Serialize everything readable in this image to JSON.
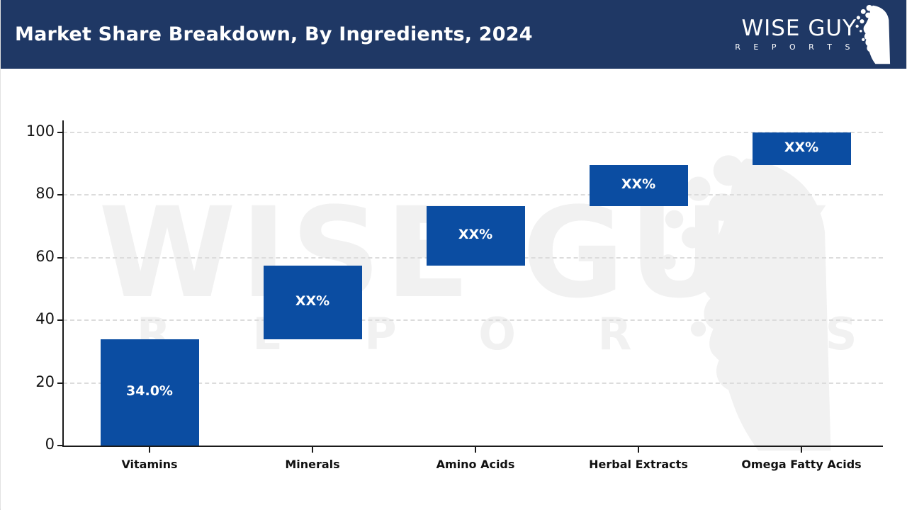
{
  "header": {
    "title": "Market Share Breakdown, By Ingredients, 2024",
    "background_color": "#1f3865",
    "logo": {
      "line1": "WISE GUY",
      "line2": "R E P O R T S"
    }
  },
  "watermark": {
    "line1": "WISE GUY",
    "line2": "R E P O R T S"
  },
  "chart_data": {
    "type": "bar",
    "subtype": "waterfall",
    "title": "Market Share Breakdown, By Ingredients, 2024",
    "xlabel": "",
    "ylabel": "",
    "ylim": [
      0,
      105
    ],
    "y_ticks": [
      0,
      20,
      40,
      60,
      80,
      100
    ],
    "grid": "horizontal-dashed",
    "legend": "none",
    "bar_color": "#0b4da2",
    "bar_label_color": "#ffffff",
    "categories": [
      "Vitamins",
      "Minerals",
      "Amino Acids",
      "Herbal Extracts",
      "Omega Fatty Acids"
    ],
    "segments": [
      {
        "category": "Vitamins",
        "start": 0,
        "end": 34,
        "label": "34.0%"
      },
      {
        "category": "Minerals",
        "start": 34,
        "end": 57.5,
        "label": "XX%"
      },
      {
        "category": "Amino Acids",
        "start": 57.5,
        "end": 76.5,
        "label": "XX%"
      },
      {
        "category": "Herbal Extracts",
        "start": 76.5,
        "end": 89.5,
        "label": "XX%"
      },
      {
        "category": "Omega Fatty Acids",
        "start": 89.5,
        "end": 100,
        "label": "XX%"
      }
    ]
  }
}
